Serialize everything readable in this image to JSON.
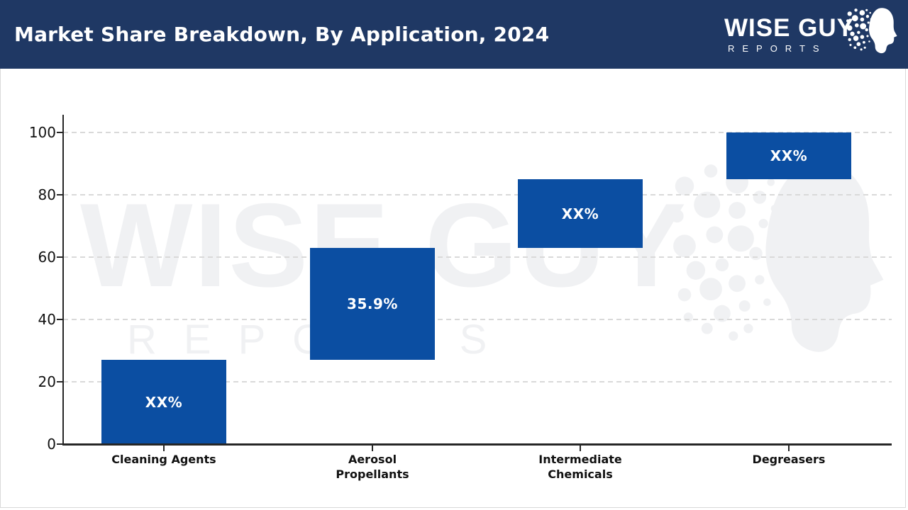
{
  "header": {
    "title": "Market Share Breakdown, By Application, 2024"
  },
  "brand": {
    "wordmark": "WISE GUY",
    "sub": "REPORTS"
  },
  "colors": {
    "header_bg": "#1f3864",
    "bar": "#0b4ea2",
    "bar_label": "#ffffff",
    "watermark": "#f0f1f3",
    "grid": "#d9d9d9",
    "axis": "#262626",
    "frame_border": "#d9d9d9"
  },
  "chart_data": {
    "type": "bar",
    "subtype": "floating_segment_bars",
    "title": "Market Share Breakdown, By Application, 2024",
    "categories": [
      "Cleaning Agents",
      "Aerosol Propellants",
      "Intermediate Chemicals",
      "Degreasers"
    ],
    "category_display": [
      "Cleaning Agents",
      "Aerosol\nPropellants",
      "Intermediate\nChemicals",
      "Degreasers"
    ],
    "values": [
      27,
      35.9,
      22.1,
      15
    ],
    "segment_start": [
      0,
      27,
      62.9,
      85
    ],
    "segment_end": [
      27,
      62.9,
      85,
      100
    ],
    "bar_labels": [
      "XX%",
      "35.9%",
      "XX%",
      "XX%"
    ],
    "xlabel": "",
    "ylabel": "",
    "ylim": [
      0,
      100
    ],
    "yticks": [
      0,
      20,
      40,
      60,
      80,
      100
    ],
    "grid": "horizontal-dashed",
    "legend": "none",
    "bar_color": "#0b4ea2",
    "bar_label_color": "#ffffff"
  }
}
